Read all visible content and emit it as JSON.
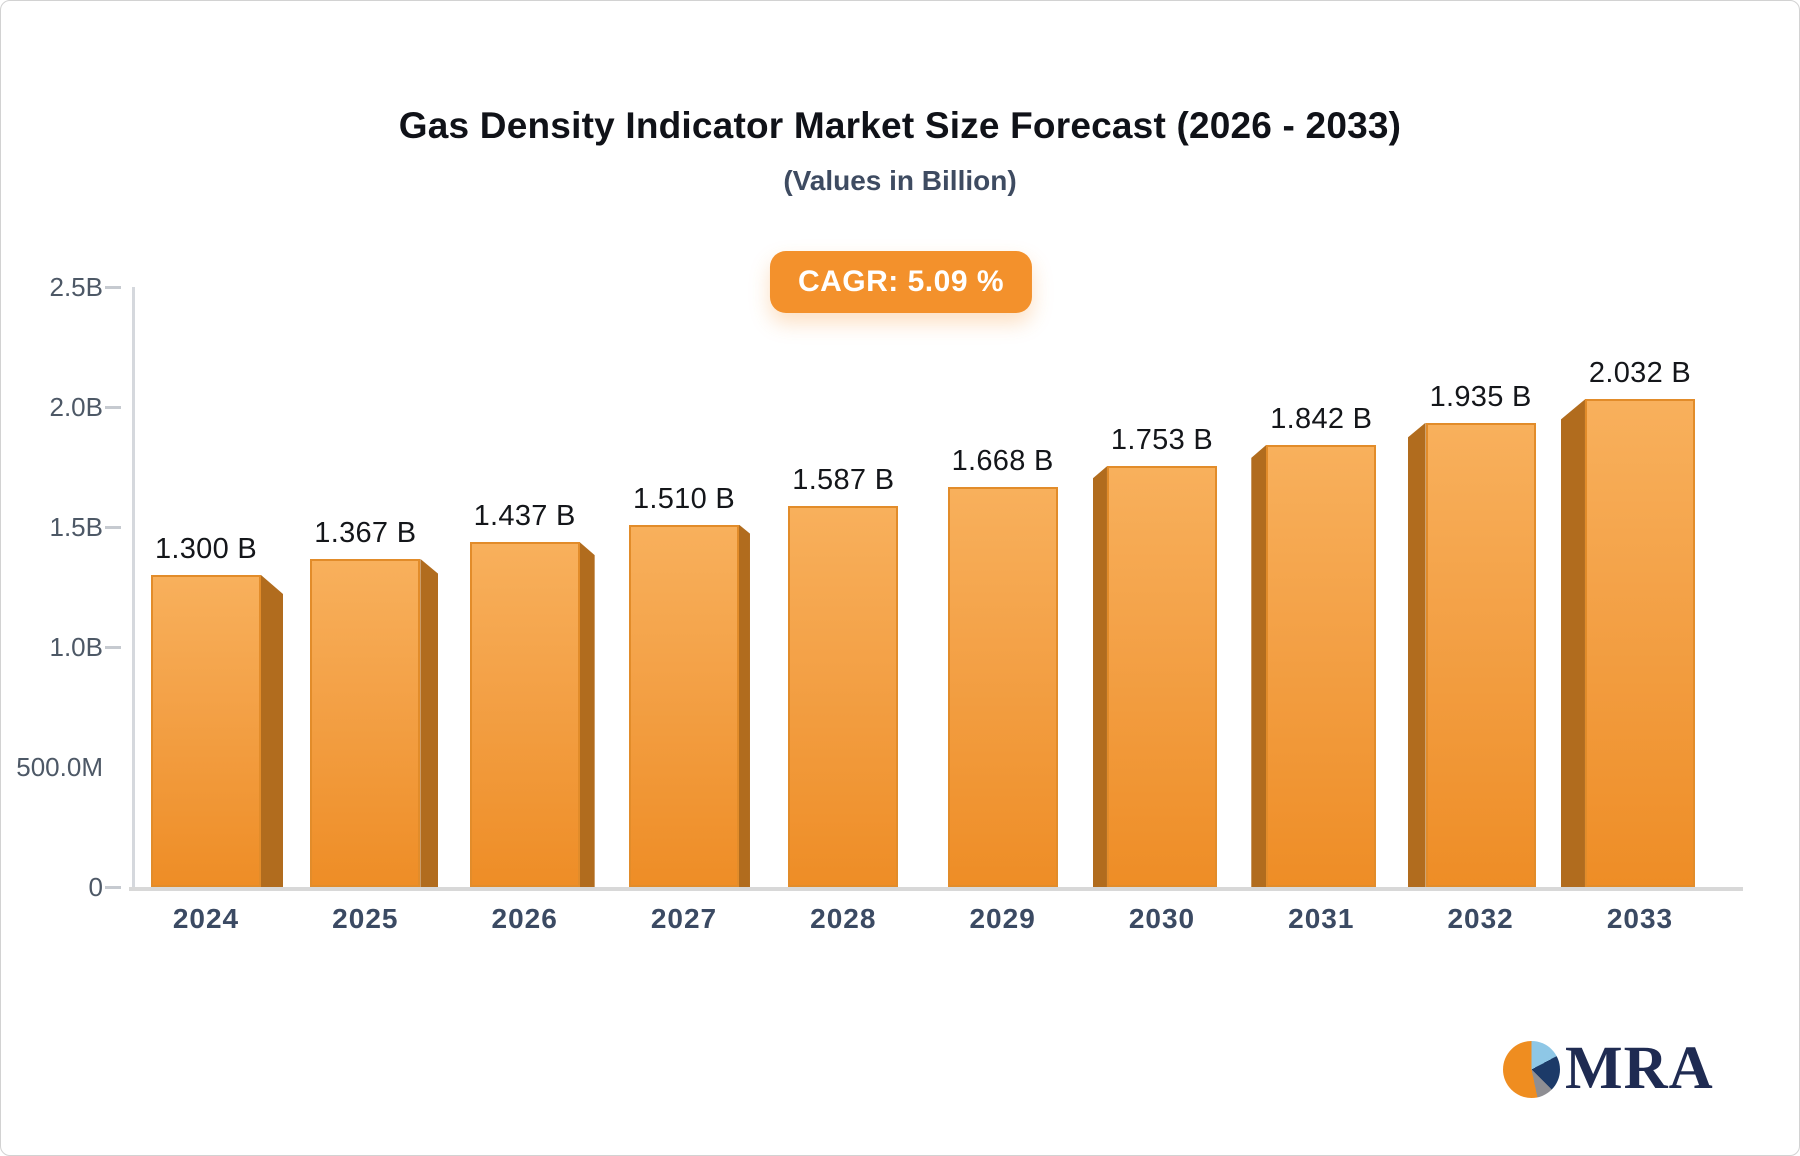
{
  "title": "Gas Density Indicator Market Size Forecast (2026 - 2033)",
  "subtitle": "(Values in Billion)",
  "badge": {
    "label": "CAGR: 5.09 %"
  },
  "logo": {
    "text": "MRA",
    "icon": "pie-chart-icon"
  },
  "colors": {
    "badge_bg": "#f3912c",
    "bar_face_top": "#f8b05c",
    "bar_face_bottom": "#ee8d26",
    "bar_side": "#b16c1e",
    "axis_text": "#4d5866",
    "category_text": "#3b4a63",
    "value_text": "#14161a",
    "logo_navy": "#1f2b52",
    "pie_orange": "#ef8d20",
    "pie_lightblue": "#8ec7e6",
    "pie_navy": "#1c3a68",
    "pie_gray": "#8e8e93"
  },
  "chart_data": {
    "type": "bar",
    "title": "Gas Density Indicator Market Size Forecast (2026 - 2033)",
    "subtitle": "(Values in Billion)",
    "annotation": "CAGR: 5.09 %",
    "categories": [
      "2024",
      "2025",
      "2026",
      "2027",
      "2028",
      "2029",
      "2030",
      "2031",
      "2032",
      "2033"
    ],
    "values": [
      1.3,
      1.367,
      1.437,
      1.51,
      1.587,
      1.668,
      1.753,
      1.842,
      1.935,
      2.032
    ],
    "value_labels": [
      "1.300 B",
      "1.367 B",
      "1.437 B",
      "1.510 B",
      "1.587 B",
      "1.668 B",
      "1.753 B",
      "1.842 B",
      "1.935 B",
      "2.032 B"
    ],
    "unit": "B",
    "xlabel": "",
    "ylabel": "",
    "ylim": [
      0,
      2.5
    ],
    "grid": false,
    "legend": false,
    "yticks": [
      {
        "label": "2.5B",
        "value": 2.5,
        "dash": true
      },
      {
        "label": "2.0B",
        "value": 2.0,
        "dash": true
      },
      {
        "label": "1.5B",
        "value": 1.5,
        "dash": true
      },
      {
        "label": "1.0B",
        "value": 1.0,
        "dash": true
      },
      {
        "label": "500.0M",
        "value": 0.5,
        "dash": false
      },
      {
        "label": "0",
        "value": 0.0,
        "dash": true
      }
    ]
  }
}
